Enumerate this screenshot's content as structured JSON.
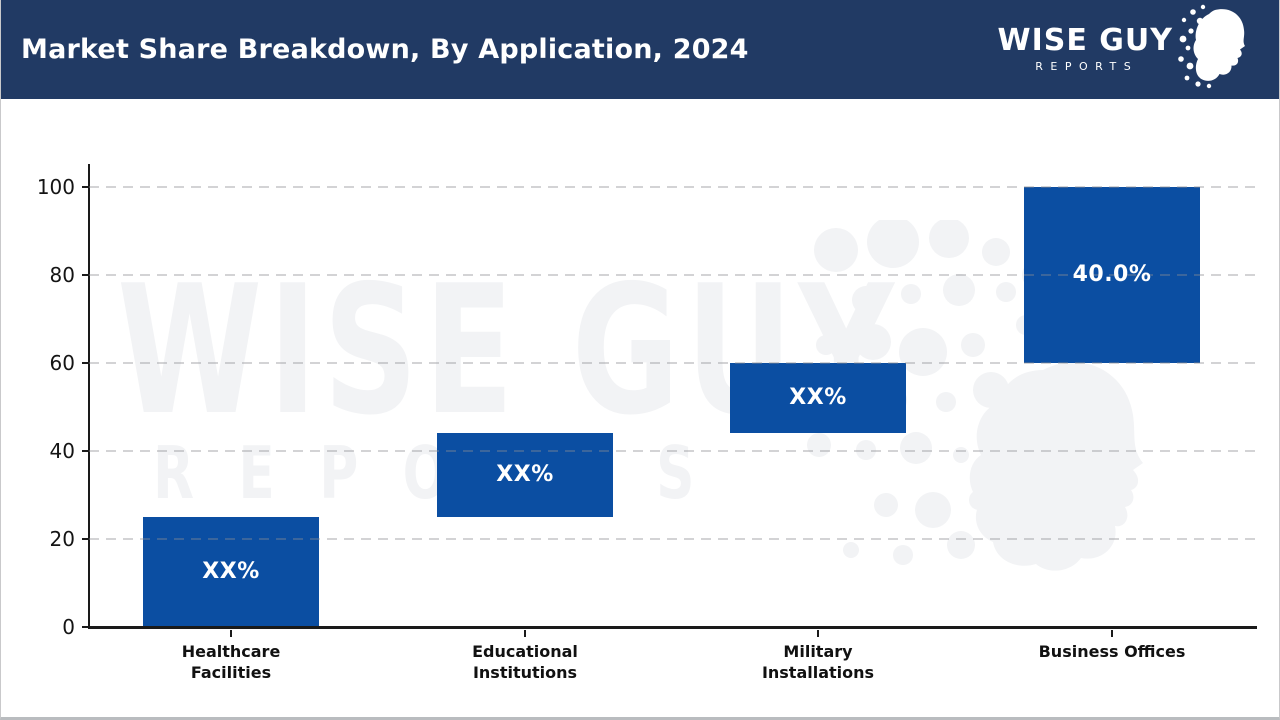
{
  "header": {
    "title": "Market Share Breakdown, By Application, 2024",
    "logo": {
      "wordmark": "WISE GUY",
      "subtext": "REPORTS"
    }
  },
  "watermark": {
    "line1": "WISE GUY",
    "line2": "REPORTS"
  },
  "colors": {
    "header_bg": "#213a64",
    "bar": "#0b4ea2",
    "bar_label": "#ffffff",
    "axis": "#1a1a1a",
    "grid": "#d4d4d6",
    "watermark": "#f2f3f5"
  },
  "chart_data": {
    "type": "bar",
    "subtype": "waterfall",
    "title": "Market Share Breakdown, By Application, 2024",
    "categories": [
      [
        "Healthcare",
        "Facilities"
      ],
      [
        "Educational",
        "Institutions"
      ],
      [
        "Military",
        "Installations"
      ],
      [
        "Business Offices"
      ]
    ],
    "segments": [
      {
        "category": "Healthcare Facilities",
        "start": 0,
        "end": 25,
        "value": 25,
        "label": "XX%"
      },
      {
        "category": "Educational Institutions",
        "start": 25,
        "end": 44,
        "value": 19,
        "label": "XX%"
      },
      {
        "category": "Military Installations",
        "start": 44,
        "end": 60,
        "value": 16,
        "label": "XX%"
      },
      {
        "category": "Business Offices",
        "start": 60,
        "end": 100,
        "value": 40,
        "label": "40.0%"
      }
    ],
    "yticks": [
      0,
      20,
      40,
      60,
      80,
      100
    ],
    "ylim": [
      0,
      105
    ],
    "xlabel": "",
    "ylabel": "",
    "grid": {
      "horizontal": true,
      "style": "dashed"
    },
    "legend": "none",
    "bar_color": "#0b4ea2",
    "bar_label_color": "#ffffff"
  }
}
